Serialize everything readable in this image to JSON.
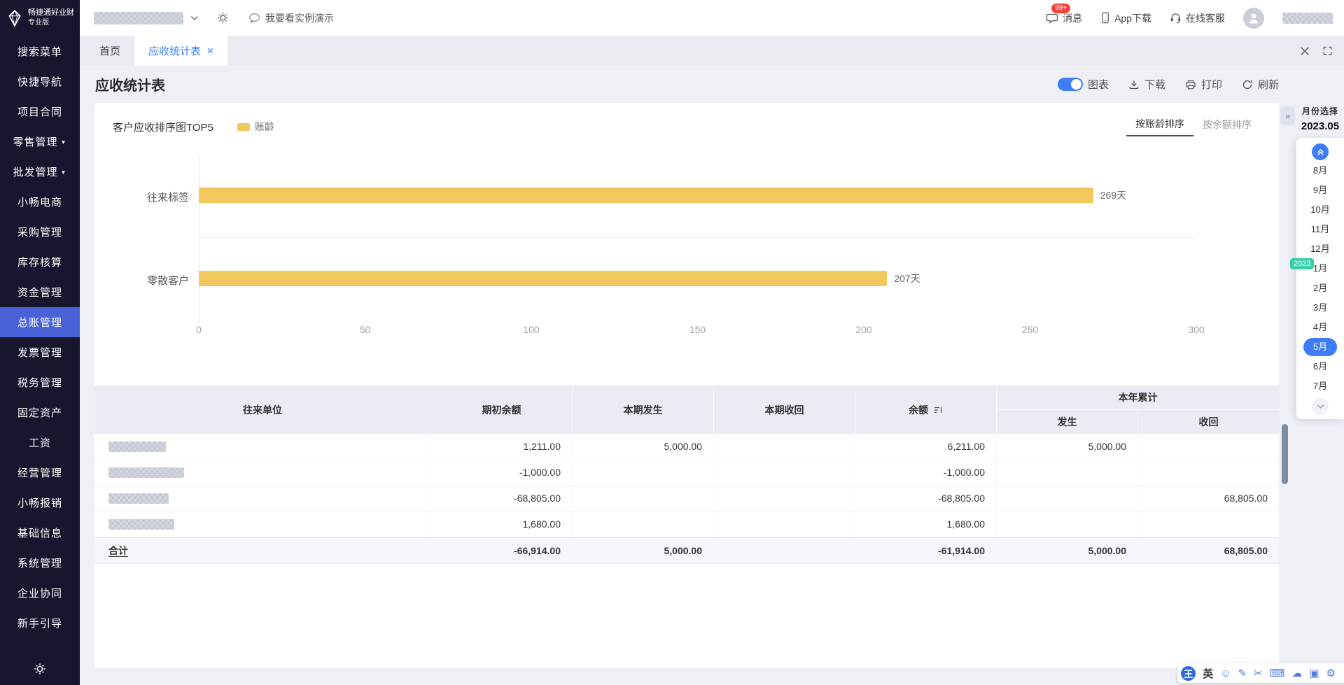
{
  "brand": {
    "name": "畅捷通好业财",
    "edition": "专业版"
  },
  "sidebar": {
    "items": [
      {
        "label": "搜索菜单"
      },
      {
        "label": "快捷导航"
      },
      {
        "label": "项目合同"
      },
      {
        "label": "零售管理",
        "expandable": true
      },
      {
        "label": "批发管理",
        "expandable": true
      },
      {
        "label": "小畅电商"
      },
      {
        "label": "采购管理"
      },
      {
        "label": "库存核算"
      },
      {
        "label": "资金管理"
      },
      {
        "label": "总账管理",
        "active": true
      },
      {
        "label": "发票管理"
      },
      {
        "label": "税务管理"
      },
      {
        "label": "固定资产"
      },
      {
        "label": "工资"
      },
      {
        "label": "经营管理"
      },
      {
        "label": "小畅报销"
      },
      {
        "label": "基础信息"
      },
      {
        "label": "系统管理"
      },
      {
        "label": "企业协同"
      },
      {
        "label": "新手引导"
      }
    ]
  },
  "topbar": {
    "demo_link": "我要看实例演示",
    "messages": {
      "label": "消息",
      "badge": "99+"
    },
    "app_download": "App下载",
    "online_service": "在线客服"
  },
  "tabs": [
    {
      "label": "首页",
      "active": false
    },
    {
      "label": "应收统计表",
      "active": true,
      "closable": true
    }
  ],
  "page": {
    "title": "应收统计表",
    "toolbar": {
      "chart": "图表",
      "download": "下载",
      "print": "打印",
      "refresh": "刷新"
    }
  },
  "chart_data": {
    "type": "bar",
    "orientation": "horizontal",
    "title": "客户应收排序图TOP5",
    "legend": [
      {
        "label": "账龄",
        "color": "#f2c75e"
      }
    ],
    "sort_tabs": [
      {
        "label": "按账龄排序",
        "active": true
      },
      {
        "label": "按余额排序",
        "active": false
      }
    ],
    "categories": [
      "往来标签",
      "零散客户"
    ],
    "values": [
      269,
      207
    ],
    "value_labels": [
      "269天",
      "207天"
    ],
    "unit": "天",
    "xlim": [
      0,
      300
    ],
    "x_ticks": [
      "0",
      "50",
      "100",
      "150",
      "200",
      "250",
      "300"
    ],
    "grid": true,
    "bar_color": "#f2c75e"
  },
  "table": {
    "columns": [
      "往来单位",
      "期初余额",
      "本期发生",
      "本期收回",
      "余额"
    ],
    "year_group": {
      "label": "本年累计",
      "sub_columns": [
        "发生",
        "收回"
      ]
    },
    "rows": [
      {
        "redacted_name": true,
        "values": [
          "1,211.00",
          "5,000.00",
          "",
          "6,211.00",
          "5,000.00",
          ""
        ]
      },
      {
        "redacted_name": true,
        "values": [
          "-1,000.00",
          "",
          "",
          "-1,000.00",
          "",
          ""
        ]
      },
      {
        "redacted_name": true,
        "values": [
          "-68,805.00",
          "",
          "",
          "-68,805.00",
          "",
          "68,805.00"
        ]
      },
      {
        "redacted_name": true,
        "values": [
          "1,680.00",
          "",
          "",
          "1,680.00",
          "",
          ""
        ]
      }
    ],
    "total_row": {
      "label": "合计",
      "values": [
        "-66,914.00",
        "5,000.00",
        "",
        "-61,914.00",
        "5,000.00",
        "68,805.00"
      ]
    }
  },
  "month_panel": {
    "title": "月份选择",
    "current": "2023.05",
    "year_badge": "2023",
    "months": [
      "8月",
      "9月",
      "10月",
      "11月",
      "12月",
      "1月",
      "2月",
      "3月",
      "4月",
      "5月",
      "6月",
      "7月"
    ],
    "selected_month": "5月"
  },
  "icons": {
    "panel_collapse": "»"
  },
  "ime": {
    "logo": "王",
    "mode": "英"
  }
}
